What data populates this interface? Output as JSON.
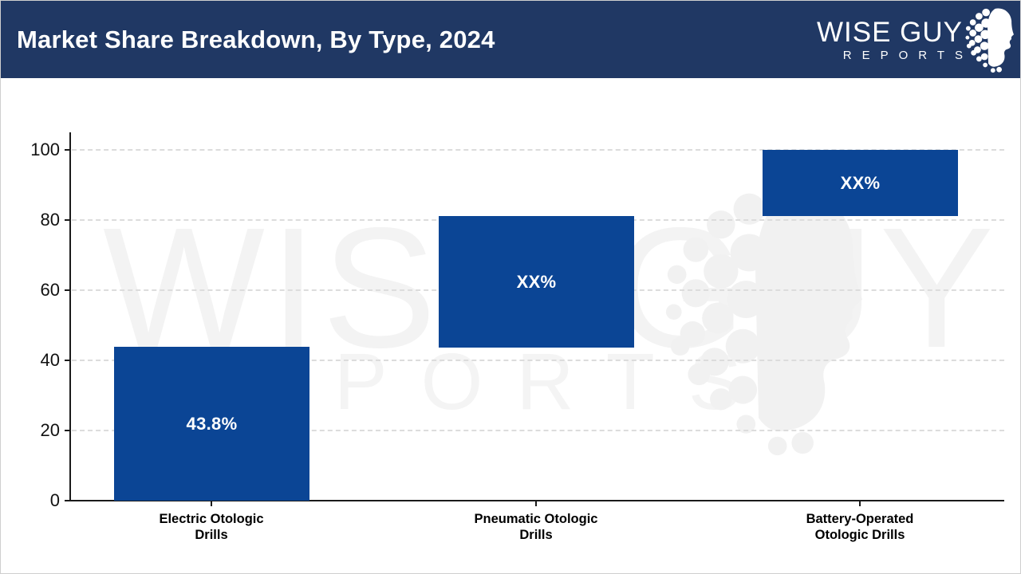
{
  "header": {
    "title": "Market Share Breakdown, By Type, 2024",
    "bg_color": "#203864",
    "logo": {
      "line1": "WISE GUY",
      "line2": "REPORTS"
    }
  },
  "watermark": {
    "text_top": "WISE GUY",
    "text_bottom": "REPORTS"
  },
  "chart_data": {
    "type": "bar",
    "variant": "waterfall",
    "title": "Market Share Breakdown, By Type, 2024",
    "categories": [
      "Electric Otologic Drills",
      "Pneumatic Otologic Drills",
      "Battery-Operated Otologic Drills"
    ],
    "category_label_lines": [
      [
        "Electric Otologic",
        "Drills"
      ],
      [
        "Pneumatic Otologic",
        "Drills"
      ],
      [
        "Battery-Operated",
        "Otologic Drills"
      ]
    ],
    "series": [
      {
        "name": "Market share (%)",
        "segments": [
          {
            "category": "Electric Otologic Drills",
            "start": 0,
            "end": 43.8,
            "label": "43.8%"
          },
          {
            "category": "Pneumatic Otologic Drills",
            "start": 43.8,
            "end": 81.2,
            "label": "XX%"
          },
          {
            "category": "Battery-Operated Otologic Drills",
            "start": 81.2,
            "end": 100,
            "label": "XX%"
          }
        ]
      }
    ],
    "ylim": [
      0,
      100
    ],
    "yticks": [
      0,
      20,
      40,
      60,
      80,
      100
    ],
    "xlabel": "",
    "ylabel": "",
    "grid": "horizontal-dashed",
    "legend": "none",
    "bar_color": "#0B4595",
    "bar_label_color": "#ffffff",
    "axis_color": "#1a1a1a"
  }
}
